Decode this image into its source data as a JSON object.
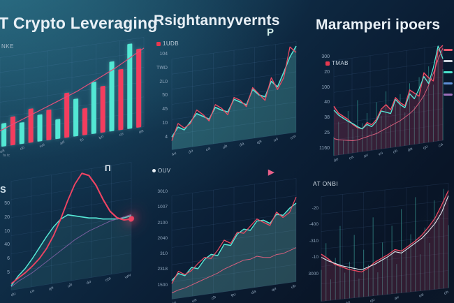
{
  "background": {
    "accent_teal": "#17425a",
    "deep_navy": "#091527"
  },
  "panels": [
    {
      "title": "T Crypto Leveraging",
      "corner_label": "NKE"
    },
    {
      "title": "Rsightannyvernts",
      "badge_label": "1UDB",
      "glyph": "P"
    },
    {
      "title": "Maramperi ipoers",
      "badge_label": "TMAB"
    },
    {
      "corner_note": "fa tc",
      "side_label": "S",
      "glyph": "П"
    },
    {
      "badge_label": "OUV",
      "glyph": "▶"
    },
    {
      "badge_label": "AT ONBI"
    }
  ],
  "chart_data": [
    {
      "type": "bar",
      "title": "T Crypto Leveraging",
      "values": [
        26,
        32,
        24,
        38,
        30,
        34,
        22,
        50,
        42,
        30,
        58,
        52,
        78,
        68,
        95,
        88
      ],
      "bar_colors": [
        "#53e8d4",
        "#f43d5e"
      ],
      "trend": [
        18,
        22,
        26,
        30,
        34,
        38,
        42,
        46,
        50,
        55,
        60,
        65,
        70,
        76,
        82,
        88
      ],
      "trend_color": "#e0507a",
      "xticklabels": [
        "ua",
        "cb",
        "ws",
        "ad",
        "fo",
        "bn",
        "ce",
        "da"
      ],
      "ylim": [
        0,
        100
      ],
      "grid": true,
      "legend_position": "none"
    },
    {
      "type": "area",
      "series": [
        {
          "name": "teal",
          "values": [
            14,
            24,
            20,
            28,
            36,
            32,
            28,
            40,
            36,
            33,
            46,
            42,
            38,
            54,
            47,
            44,
            60,
            53,
            68,
            84,
            95
          ],
          "color": "#56e8d6",
          "fill": "rgba(96,205,196,0.28)",
          "width": 1.6
        },
        {
          "name": "red",
          "values": [
            10,
            28,
            22,
            26,
            40,
            34,
            26,
            43,
            38,
            30,
            48,
            44,
            36,
            56,
            48,
            40,
            64,
            50,
            62,
            95,
            88
          ],
          "color": "#ef4b63",
          "width": 1.3
        }
      ],
      "yticklabels": [
        "104",
        "TWD",
        "2L0",
        "50",
        "45",
        "10",
        "4"
      ],
      "xticklabels": [
        "4u",
        "do",
        "ca",
        "ub",
        "da",
        "qa",
        "us",
        "cm"
      ],
      "ylim": [
        0,
        100
      ],
      "grid": true
    },
    {
      "type": "area",
      "spikes": [
        20,
        35,
        15,
        45,
        25,
        55,
        30,
        40,
        20,
        50,
        35,
        60,
        25,
        45,
        55,
        35,
        65,
        40,
        70,
        50,
        80,
        60,
        90,
        75
      ],
      "spike_color": "#49e0c9",
      "series": [
        {
          "name": "red",
          "values": [
            52,
            44,
            40,
            36,
            30,
            26,
            24,
            30,
            27,
            32,
            42,
            46,
            40,
            52,
            46,
            42,
            58,
            54,
            50,
            74,
            68,
            64,
            96,
            100
          ],
          "color": "#ef4b63",
          "fill": "rgba(150,45,75,0.32)",
          "width": 1.4
        },
        {
          "name": "teal",
          "values": [
            48,
            42,
            38,
            34,
            31,
            27,
            24,
            28,
            25,
            30,
            40,
            38,
            36,
            50,
            44,
            40,
            54,
            48,
            58,
            70,
            62,
            78,
            100,
            86
          ],
          "color": "#56e8d6",
          "width": 1.3
        },
        {
          "name": "pink-slow",
          "values": [
            18,
            16,
            15,
            14,
            13,
            13,
            14,
            15,
            16,
            17,
            19,
            21,
            23,
            25,
            27,
            30,
            33,
            37,
            43,
            50,
            60,
            72,
            86,
            97
          ],
          "color": "#d8607e",
          "width": 1
        }
      ],
      "yticklabels": [
        "300",
        "20",
        "100",
        "40",
        "38",
        "25",
        "1160"
      ],
      "xticklabels": [
        "do",
        "ca",
        "av",
        "vu",
        "cb",
        "da",
        "qu",
        "ca"
      ],
      "legend_colors": [
        "#e8596e",
        "#cfd5dd",
        "#49e0c9",
        "#5e8fd6",
        "#9d6fba"
      ],
      "legend_position": "right",
      "ylim": [
        0,
        100
      ],
      "grid": true
    },
    {
      "type": "line",
      "series": [
        {
          "name": "teal",
          "values": [
            4,
            12,
            18,
            26,
            35,
            44,
            52,
            58,
            61,
            59,
            57,
            55,
            54,
            52,
            51,
            50,
            50,
            51
          ],
          "color": "#56e8d6",
          "fill": "rgba(90,200,190,0.12)",
          "width": 1.6
        },
        {
          "name": "purple",
          "values": [
            3,
            7,
            10,
            13,
            17,
            21,
            25,
            29,
            33,
            37,
            40,
            43,
            45,
            47,
            49,
            50,
            51,
            52
          ],
          "color": "#7a5fa0",
          "width": 1
        },
        {
          "name": "red-peak",
          "values": [
            6,
            10,
            14,
            19,
            25,
            33,
            44,
            58,
            74,
            88,
            97,
            94,
            84,
            70,
            58,
            51,
            48,
            48
          ],
          "color": "#ef4463",
          "width": 2,
          "endpoint_glow": true
        }
      ],
      "yticklabels": [
        "50",
        "20",
        "10",
        "40",
        "6",
        "5"
      ],
      "xticklabels": [
        "du",
        "ca",
        "qa",
        "ub",
        "do",
        "cta",
        "ww"
      ],
      "ylim": [
        0,
        100
      ],
      "grid": true
    },
    {
      "type": "area",
      "series": [
        {
          "name": "teal",
          "values": [
            18,
            24,
            21,
            28,
            26,
            34,
            38,
            36,
            46,
            44,
            54,
            58,
            56,
            64,
            64,
            60,
            68,
            66,
            72,
            76
          ],
          "color": "#56e8d6",
          "fill": "rgba(110,190,185,0.30)",
          "width": 1.5
        },
        {
          "name": "red",
          "values": [
            15,
            26,
            22,
            25,
            31,
            36,
            34,
            41,
            50,
            46,
            56,
            54,
            60,
            66,
            62,
            58,
            70,
            64,
            68,
            82
          ],
          "color": "#ef4b63",
          "width": 1.3
        },
        {
          "name": "pink-low",
          "values": [
            6,
            8,
            9,
            11,
            13,
            15,
            17,
            19,
            22,
            24,
            26,
            28,
            28,
            30,
            28,
            27,
            29,
            29,
            31,
            33
          ],
          "color": "#d8607e",
          "width": 1
        }
      ],
      "yticklabels": [
        "3010",
        "1007",
        "2100",
        "2040",
        "310",
        "2318",
        "1500"
      ],
      "xticklabels": [
        "do",
        "ua",
        "cb",
        "9u",
        "da",
        "qu",
        "ub"
      ],
      "ylim": [
        0,
        100
      ],
      "grid": true
    },
    {
      "type": "area",
      "spikes": [
        30,
        55,
        20,
        40,
        70,
        25,
        35,
        60,
        18,
        45,
        30,
        75,
        22,
        50,
        35,
        65,
        28,
        80,
        40,
        55,
        90,
        35,
        60,
        45,
        85,
        70,
        95,
        60
      ],
      "spike_color": "#4fd8c8",
      "series": [
        {
          "name": "red",
          "values": [
            45,
            40,
            34,
            31,
            28,
            26,
            24,
            27,
            32,
            35,
            38,
            42,
            40,
            44,
            48,
            53,
            60,
            68,
            80,
            93
          ],
          "color": "#ef4b63",
          "fill": "rgba(150,50,80,0.28)",
          "width": 1.3
        },
        {
          "name": "white",
          "values": [
            42,
            38,
            35,
            32,
            30,
            28,
            26,
            28,
            30,
            33,
            36,
            40,
            38,
            42,
            46,
            50,
            56,
            63,
            73,
            88
          ],
          "color": "#dfe7ee",
          "width": 1.1
        }
      ],
      "yticklabels": [
        "-20",
        "-400",
        "-310",
        "-10",
        "3000"
      ],
      "xticklabels": [
        "ca",
        "do",
        "qu",
        "av",
        "ua",
        "cb"
      ],
      "ylim": [
        0,
        100
      ],
      "grid": true
    }
  ]
}
